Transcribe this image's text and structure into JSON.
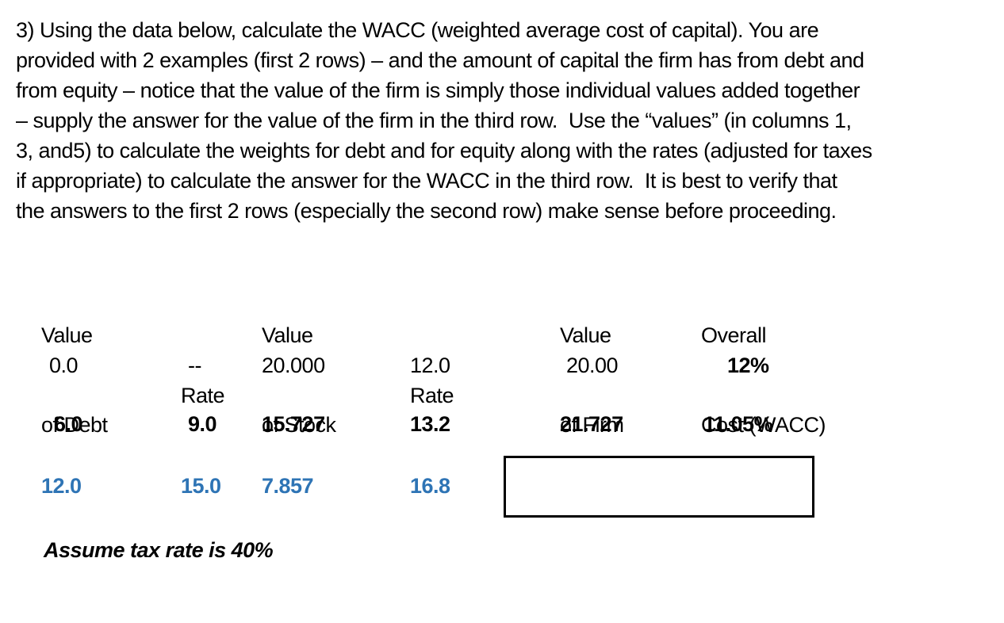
{
  "problem": {
    "lines": [
      "3) Using the data below, calculate the WACC (weighted average cost of capital). You are",
      "provided with 2 examples (first 2 rows) – and the amount of capital the firm has from debt and",
      "from equity – notice that the value of the firm is simply those individual values added together",
      "– supply the answer for the value of the firm in the third row.  Use the “values” (in columns 1,",
      "3, and5) to calculate the weights for debt and for equity along with the rates (adjusted for taxes",
      "if appropriate) to calculate the answer for the WACC in the third row.  It is best to verify that",
      "the answers to the first 2 rows (especially the second row) make sense before proceeding."
    ]
  },
  "table": {
    "headers": {
      "col1": {
        "line1": "Value",
        "line2": "of Debt"
      },
      "col2": {
        "line1": "",
        "line2": "Rate"
      },
      "col3": {
        "line1": "Value",
        "line2": "of Stock"
      },
      "col4": {
        "line1": "",
        "line2": "Rate"
      },
      "col5": {
        "line1": "Value",
        "line2": "of Firm"
      },
      "col6": {
        "line1": "Overall",
        "line2": "Cost (WACC)"
      }
    },
    "rows": [
      {
        "value_of_debt": "0.0",
        "debt_rate": "--",
        "value_of_stock": "20.000",
        "stock_rate": "12.0",
        "value_of_firm": "20.00",
        "overall_cost_wacc": "12%"
      },
      {
        "value_of_debt": "6.0",
        "debt_rate": "9.0",
        "value_of_stock": "15.727",
        "stock_rate": "13.2",
        "value_of_firm": "21.727",
        "overall_cost_wacc": "11.05%"
      },
      {
        "value_of_debt": "12.0",
        "debt_rate": "15.0",
        "value_of_stock": "7.857",
        "stock_rate": "16.8",
        "value_of_firm": "",
        "overall_cost_wacc": ""
      }
    ],
    "answer_box": {
      "value": ""
    }
  },
  "note": "Assume tax rate is 40%",
  "colors": {
    "text": "#000000",
    "highlight_blue": "#2E74B5",
    "background": "#ffffff"
  }
}
